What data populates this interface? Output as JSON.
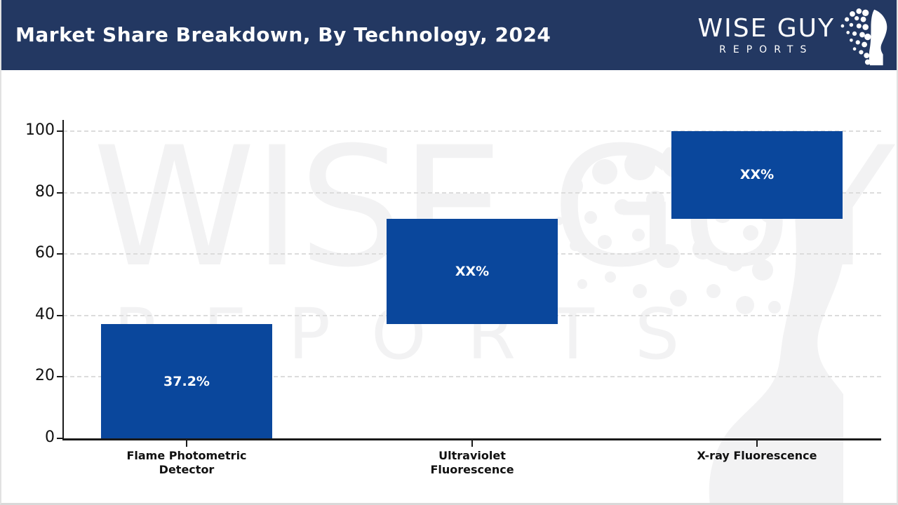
{
  "header": {
    "title": "Market Share Breakdown, By Technology, 2024",
    "logo": {
      "wordmark": "WISE GUY",
      "subtext": "REPORTS"
    }
  },
  "watermark": {
    "wordmark": "WISE GUY",
    "subtext": "REPORTS"
  },
  "colors": {
    "header_bg": "#233862",
    "bar_fill": "#0a479c",
    "bar_label_text": "#ffffff",
    "gridline": "#dcdcdc",
    "axis": "#1a1a1a",
    "watermark": "#f2f2f3"
  },
  "chart_data": {
    "type": "bar",
    "variant": "floating-waterfall-segments",
    "title": "Market Share Breakdown, By Technology, 2024",
    "categories": [
      "Flame Photometric Detector",
      "Ultraviolet Fluorescence",
      "X-ray Fluorescence"
    ],
    "series": [
      {
        "name": "Flame Photometric Detector",
        "start": 0,
        "end": 37.2,
        "label": "37.2%"
      },
      {
        "name": "Ultraviolet Fluorescence",
        "start": 37.2,
        "end": 71.5,
        "label": "XX%"
      },
      {
        "name": "X-ray Fluorescence",
        "start": 71.5,
        "end": 100,
        "label": "XX%"
      }
    ],
    "xlabel": "",
    "ylabel": "",
    "yticks": [
      0,
      20,
      40,
      60,
      80,
      100
    ],
    "ylim": [
      0,
      103.5
    ],
    "grid": "horizontal-dashed",
    "legend": "none"
  }
}
